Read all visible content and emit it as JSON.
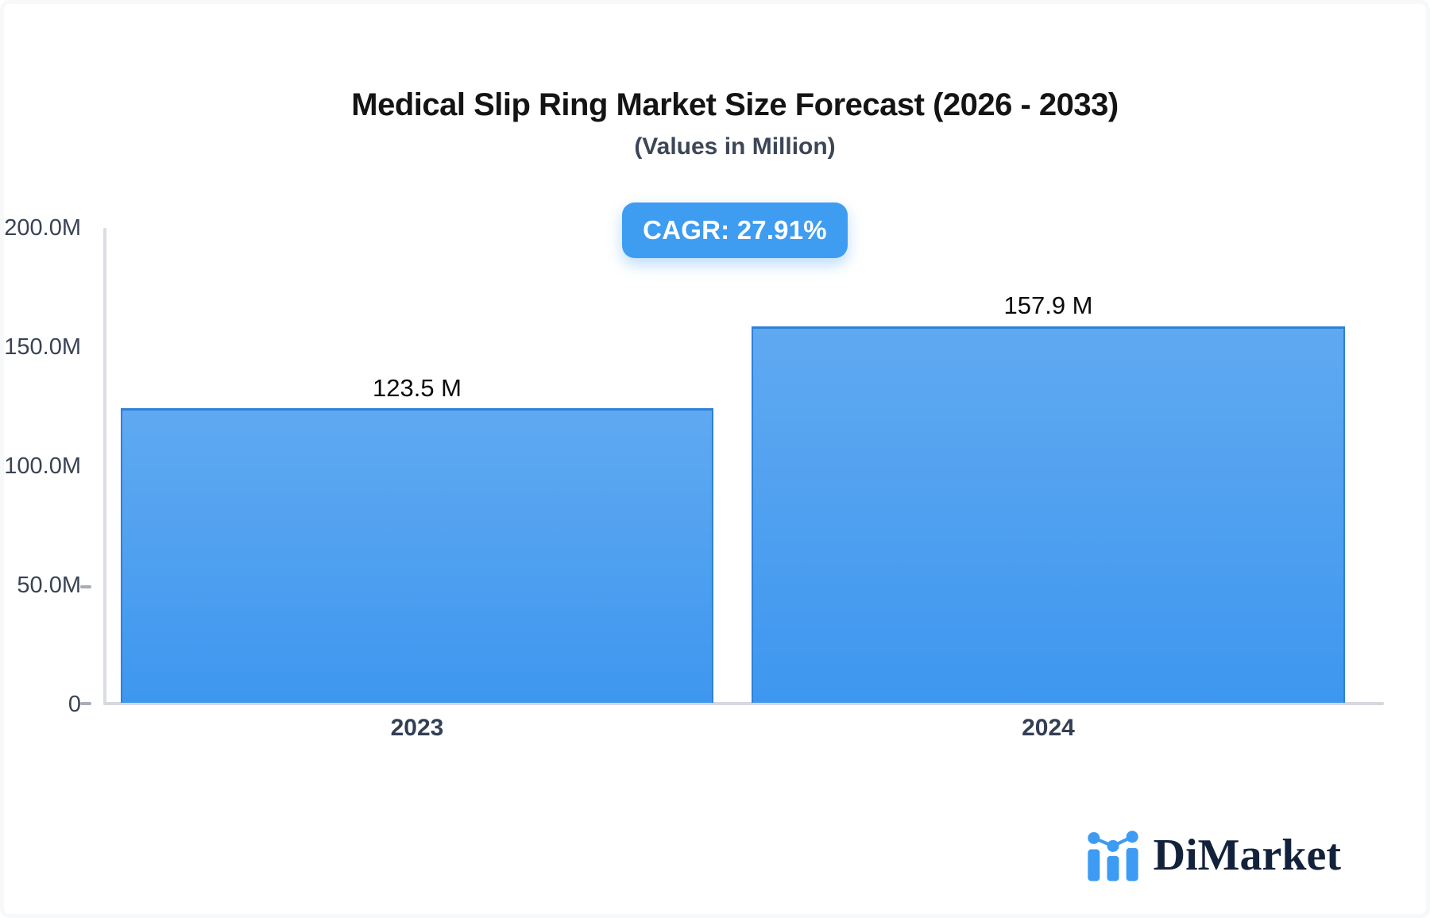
{
  "title": "Medical Slip Ring Market Size Forecast (2026 - 2033)",
  "subtitle": "(Values in Million)",
  "cagr_badge": {
    "label": "CAGR: 27.91%"
  },
  "chart_data": {
    "type": "bar",
    "categories": [
      "2023",
      "2024"
    ],
    "values": [
      123.5,
      157.9
    ],
    "value_labels": [
      "123.5 M",
      "157.9 M"
    ],
    "title": "Medical Slip Ring Market Size Forecast (2026 - 2033)",
    "subtitle": "(Values in Million)",
    "xlabel": "",
    "ylabel": "",
    "ylim": [
      0,
      200
    ],
    "ytick_values": [
      200,
      150,
      100,
      50,
      0
    ],
    "ytick_labels": [
      "200.0M",
      "150.0M",
      "100.0M",
      "50.0M",
      "0"
    ],
    "grid": false,
    "legend": false,
    "bar_color_top": "#60a9f1",
    "bar_color_bottom": "#3e97ef",
    "bar_border_color": "#2e81d8",
    "axis_color": "#d5d8de"
  },
  "colors": {
    "accent_blue": "#3e9cf1",
    "title_text": "#141414",
    "subtitle_text": "#3c4657",
    "axis_label_text": "#3a4354",
    "logo_navy": "#13223c",
    "logo_blue": "#3d9bf3",
    "background": "#ffffff"
  },
  "logo": {
    "text": "DiMarket",
    "icon": "dimarket-bar-chart-logo-icon"
  }
}
